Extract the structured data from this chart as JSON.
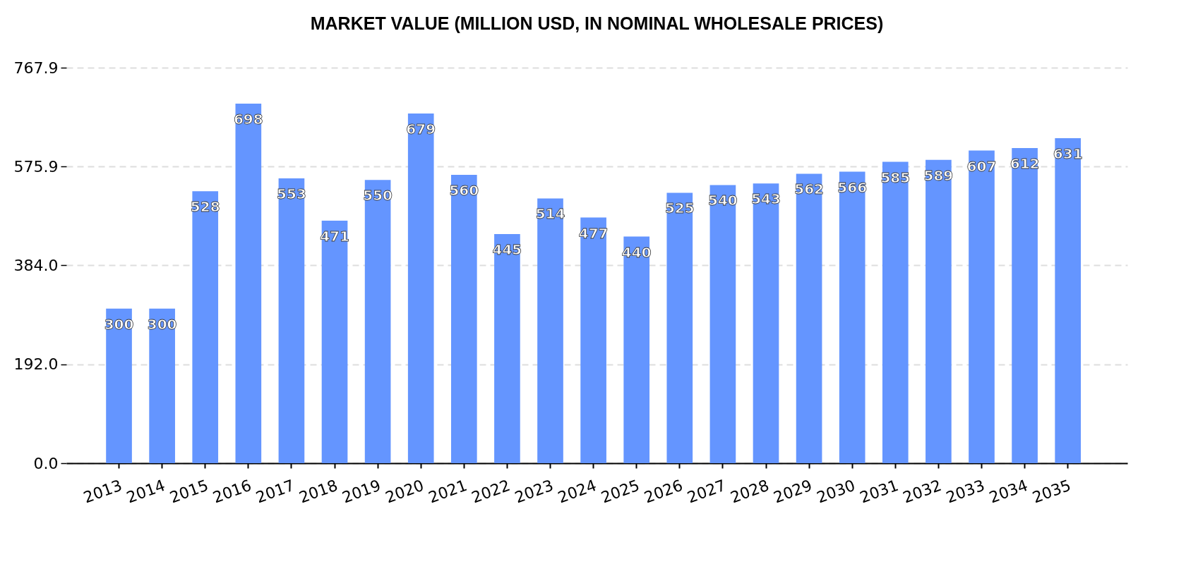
{
  "chart_data": {
    "type": "bar",
    "title": "MARKET VALUE (MILLION USD, IN NOMINAL WHOLESALE PRICES)",
    "categories": [
      "2013",
      "2014",
      "2015",
      "2016",
      "2017",
      "2018",
      "2019",
      "2020",
      "2021",
      "2022",
      "2023",
      "2024",
      "2025",
      "2026",
      "2027",
      "2028",
      "2029",
      "2030",
      "2031",
      "2032",
      "2033",
      "2034",
      "2035"
    ],
    "values": [
      300,
      300,
      528,
      698,
      553,
      471,
      550,
      679,
      560,
      445,
      514,
      477,
      440,
      525,
      540,
      543,
      562,
      566,
      585,
      589,
      607,
      612,
      631
    ],
    "color": "#6495ff",
    "ylim": [
      0,
      767.9
    ],
    "yticks": [
      {
        "value": 0,
        "label": "0.0"
      },
      {
        "value": 192.0,
        "label": "192.0"
      },
      {
        "value": 384.0,
        "label": "384.0"
      },
      {
        "value": 575.9,
        "label": "575.9"
      },
      {
        "value": 767.9,
        "label": "767.9"
      }
    ],
    "grid": "y",
    "data_labels": true
  }
}
